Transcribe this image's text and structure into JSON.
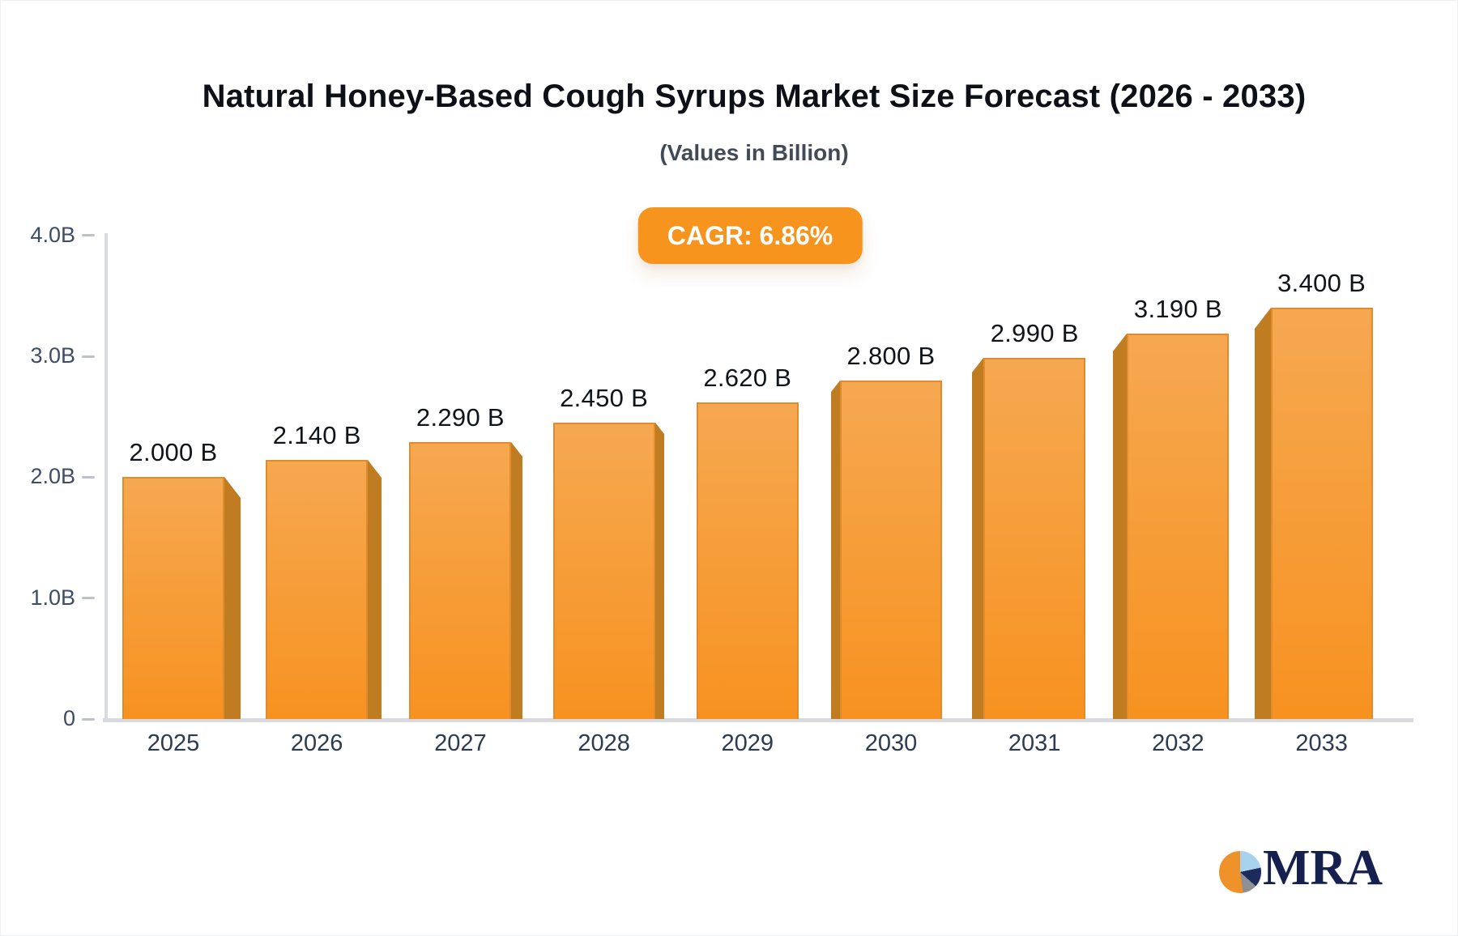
{
  "header": {
    "title": "Natural Honey-Based Cough Syrups Market Size Forecast (2026 - 2033)",
    "subtitle": "(Values in Billion)"
  },
  "badge": {
    "label": "CAGR: 6.86%"
  },
  "logo": {
    "text": "MRA",
    "icon": "pie-chart-logo-icon"
  },
  "colors": {
    "accent_orange": "#F7941E",
    "bar_gradient_top": "#F6A851",
    "bar_gradient_bottom": "#F79220",
    "bar_side": "#C07C21",
    "bar_border": "#E08B2D",
    "axis_gray": "#D8DAE0",
    "tick_gray": "#BCC1CB",
    "value_text": "#10141B",
    "axis_label_text": "#3E4C64",
    "category_text": "#2D3B52",
    "logo_navy": "#16204F"
  },
  "chart_data": {
    "type": "bar",
    "title": "Natural Honey-Based Cough Syrups Market Size Forecast (2026 - 2033)",
    "subtitle": "(Values in Billion)",
    "xlabel": "",
    "ylabel": "",
    "ylim": [
      0,
      4
    ],
    "grid": false,
    "legend": null,
    "categories": [
      "2025",
      "2026",
      "2027",
      "2028",
      "2029",
      "2030",
      "2031",
      "2032",
      "2033"
    ],
    "values": [
      2.0,
      2.14,
      2.29,
      2.45,
      2.62,
      2.8,
      2.99,
      3.19,
      3.4
    ],
    "value_labels": [
      "2.000 B",
      "2.140 B",
      "2.290 B",
      "2.450 B",
      "2.620 B",
      "2.800 B",
      "2.990 B",
      "3.190 B",
      "3.400 B"
    ],
    "y_ticks": [
      {
        "value": 0,
        "label": "0"
      },
      {
        "value": 1,
        "label": "1.0B"
      },
      {
        "value": 2,
        "label": "2.0B"
      },
      {
        "value": 3,
        "label": "3.0B"
      },
      {
        "value": 4,
        "label": "4.0B"
      }
    ],
    "cagr": "CAGR: 6.86%"
  }
}
